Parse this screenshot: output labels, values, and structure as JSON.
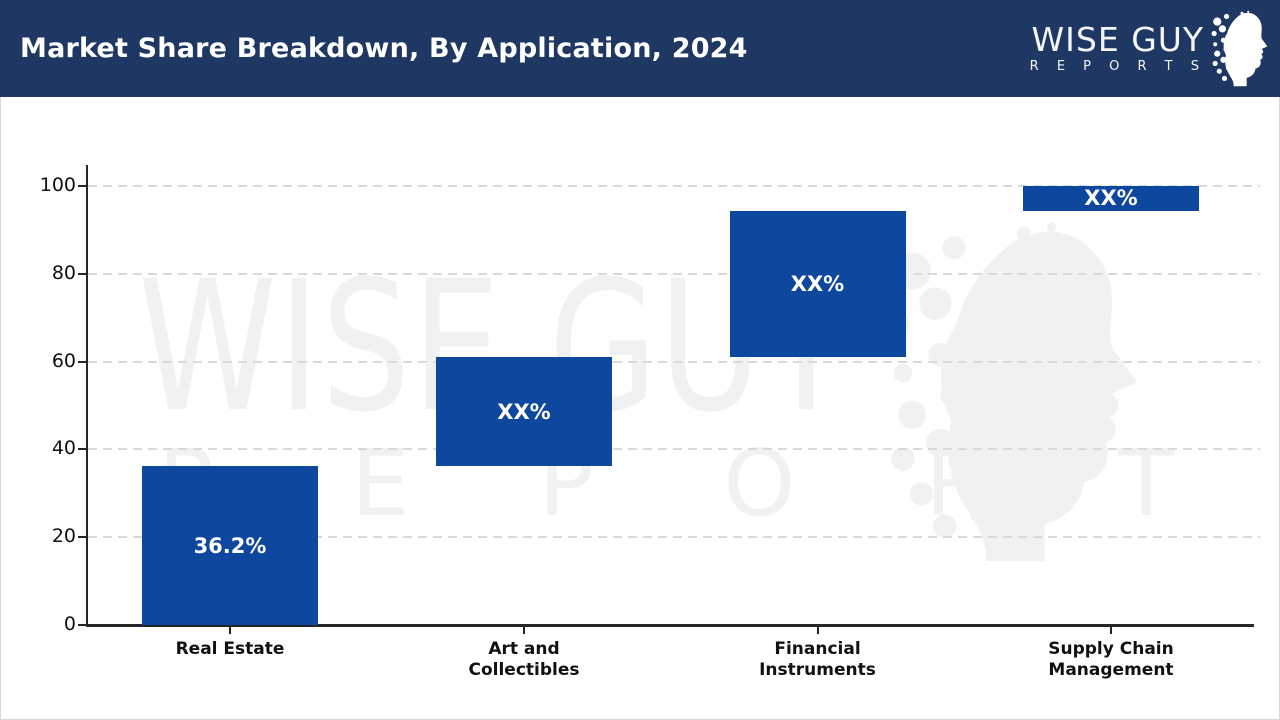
{
  "page": {
    "background": "#ffffff",
    "border_color": "#d8d8d8"
  },
  "header": {
    "bg_color": "#1f3763",
    "title": "Market Share Breakdown, By Application, 2024",
    "logo": {
      "name": "WISE GUY",
      "sub": "R E P O R T S"
    }
  },
  "watermark": {
    "line1": "WISE GUY",
    "line2": "R E P O R T S",
    "color": "#f0f1f3"
  },
  "chart_data": {
    "type": "bar",
    "subtype": "waterfall",
    "title": "Market Share Breakdown, By Application, 2024",
    "xlabel": "",
    "ylabel": "",
    "ylim": [
      0,
      105
    ],
    "yticks": [
      0,
      20,
      40,
      60,
      80,
      100
    ],
    "grid": "horizontal-dashed",
    "legend": "none",
    "bar_color": "#0d479e",
    "bar_label_color": "#ffffff",
    "axis_color": "#262626",
    "grid_color": "#d9d9d9",
    "categories": [
      {
        "lines": [
          "Real Estate"
        ]
      },
      {
        "lines": [
          "Art and",
          "Collectibles"
        ]
      },
      {
        "lines": [
          "Financial",
          "Instruments"
        ]
      },
      {
        "lines": [
          "Supply Chain",
          "Management"
        ]
      }
    ],
    "segments": [
      {
        "category": "Real Estate",
        "start": 0,
        "end": 36.2,
        "label": "36.2%"
      },
      {
        "category": "Art and Collectibles",
        "start": 36.2,
        "end": 61.0,
        "label": "XX%"
      },
      {
        "category": "Financial Instruments",
        "start": 61.0,
        "end": 94.4,
        "label": "XX%"
      },
      {
        "category": "Supply Chain Management",
        "start": 94.4,
        "end": 100.0,
        "label": "XX%"
      }
    ]
  }
}
